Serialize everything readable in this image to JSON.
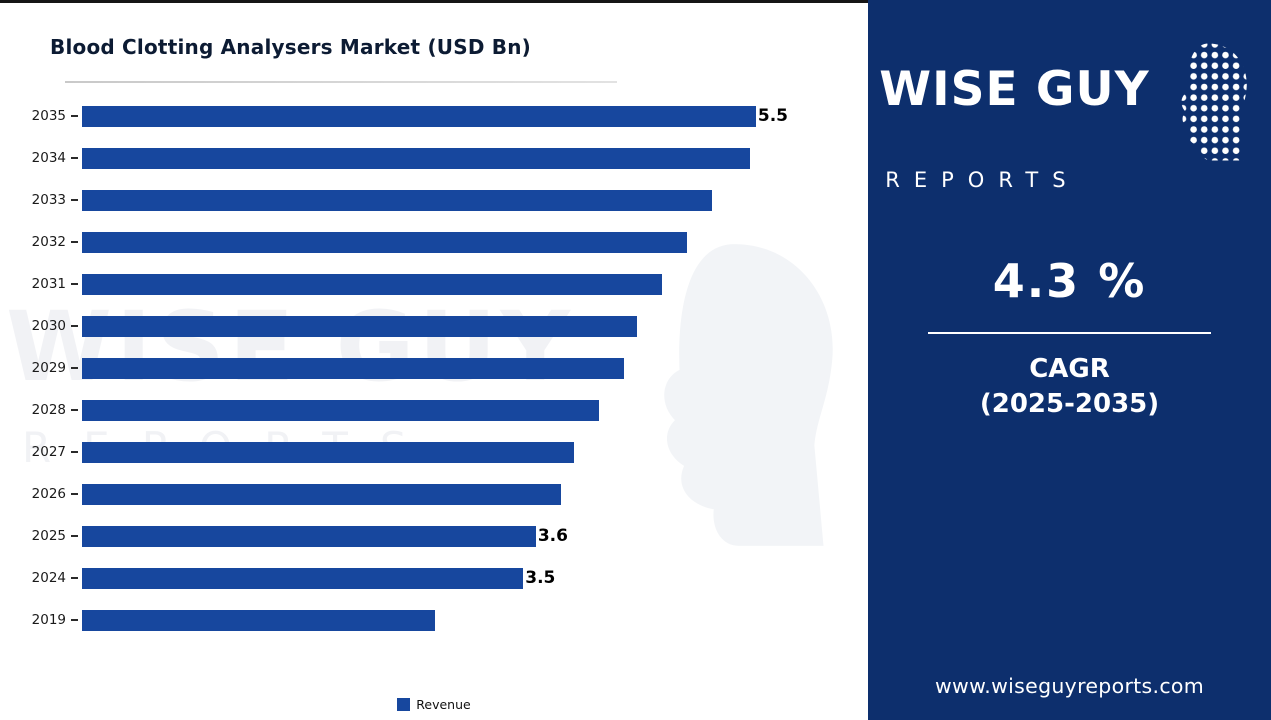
{
  "chart_data": {
    "type": "bar",
    "orientation": "horizontal",
    "title": "Blood Clotting Analysers Market (USD Bn)",
    "categories": [
      "2035",
      "2034",
      "2033",
      "2032",
      "2031",
      "2030",
      "2029",
      "2028",
      "2027",
      "2026",
      "2025",
      "2024",
      "2019"
    ],
    "values": [
      5.5,
      5.3,
      5.0,
      4.8,
      4.6,
      4.4,
      4.3,
      4.1,
      3.9,
      3.8,
      3.6,
      3.5,
      2.8
    ],
    "data_labels": {
      "2035": "5.5",
      "2025": "3.6",
      "2024": "3.5"
    },
    "xlabel": "",
    "ylabel": "",
    "xlim": [
      0,
      5.6
    ],
    "grid": false,
    "legend": [
      "Revenue"
    ],
    "legend_position": "bottom",
    "bar_color": "#17479e"
  },
  "watermark": {
    "line1": "WISE GUY",
    "line2": "REPORTS",
    "icon": "head-profile-dots-icon"
  },
  "brand_panel": {
    "logo_line1": "WISE GUY",
    "logo_line2": "REPORTS",
    "logo_icon": "head-profile-dots-icon",
    "cagr_value": "4.3 %",
    "cagr_label_line1": "CAGR",
    "cagr_label_line2": "(2025-2035)",
    "website": "www.wiseguyreports.com"
  },
  "colors": {
    "bar": "#17479e",
    "panel_bg": "#0d2f6d",
    "title_text": "#0c1b33"
  }
}
